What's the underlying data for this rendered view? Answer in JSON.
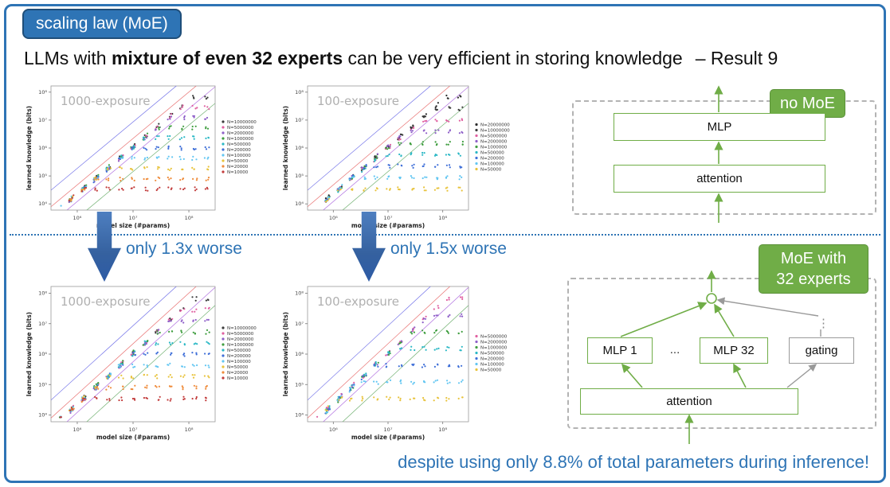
{
  "slide": {
    "badge_label": "scaling law (MoE)",
    "title": {
      "prefix": "LLMs with ",
      "bold": "mixture of even 32 experts",
      "suffix": " can be very efficient in storing knowledge",
      "result_tag": "– Result 9"
    },
    "bottom_note": "despite using only 8.8% of total parameters during inference!",
    "accent_blue": "#2E74B5",
    "accent_green": "#70AD47"
  },
  "comparison": {
    "arrow_labels": [
      "only 1.3x worse",
      "only 1.5x worse"
    ]
  },
  "no_moe_diagram": {
    "badge": "no MoE",
    "mlp": "MLP",
    "attention": "attention"
  },
  "moe_diagram": {
    "badge_line1": "MoE with",
    "badge_line2": "32 experts",
    "mlp1": "MLP 1",
    "ellipsis": "...",
    "mlp32": "MLP 32",
    "gating": "gating",
    "vertical_dots": "⋮",
    "attention": "attention"
  },
  "charts": [
    {
      "id": "chart-tl",
      "type": "scatter",
      "exposure": "1000-exposure",
      "xlabel": "model size (#params)",
      "ylabel": "learned knowledge (bits)",
      "x_ticks": [
        "10⁶",
        "10⁷",
        "10⁸"
      ],
      "y_ticks": [
        "10⁸",
        "10⁷",
        "10⁶",
        "10⁵",
        "10⁴"
      ],
      "guides": [
        "#7070e8",
        "#e87070",
        "#b070e0",
        "#70b070"
      ],
      "seed": 11,
      "series": [
        {
          "label": "N=10000000",
          "color": "#3b3b3b"
        },
        {
          "label": "N=5000000",
          "color": "#e05fa0"
        },
        {
          "label": "N=2000000",
          "color": "#8e5fc8"
        },
        {
          "label": "N=1000000",
          "color": "#3f9e3f"
        },
        {
          "label": "N=500000",
          "color": "#2ab8c5"
        },
        {
          "label": "N=200000",
          "color": "#3f6fd8"
        },
        {
          "label": "N=100000",
          "color": "#62c6f2"
        },
        {
          "label": "N=50000",
          "color": "#e8c33c"
        },
        {
          "label": "N=20000",
          "color": "#ef8b3a"
        },
        {
          "label": "N=10000",
          "color": "#c23b3b"
        }
      ]
    },
    {
      "id": "chart-tr",
      "type": "scatter",
      "exposure": "100-exposure",
      "xlabel": "model size (#params)",
      "ylabel": "learned knowledge (bits)",
      "x_ticks": [
        "10⁶",
        "10⁷",
        "10⁸"
      ],
      "y_ticks": [
        "10⁸",
        "10⁷",
        "10⁶",
        "10⁵",
        "10⁴"
      ],
      "guides": [
        "#7070e8",
        "#e87070",
        "#b070e0",
        "#70b070"
      ],
      "seed": 22,
      "series": [
        {
          "label": "N=20000000",
          "color": "#2b2b2b"
        },
        {
          "label": "N=10000000",
          "color": "#3b3b3b"
        },
        {
          "label": "N=5000000",
          "color": "#e05fa0"
        },
        {
          "label": "N=2000000",
          "color": "#8e5fc8"
        },
        {
          "label": "N=1000000",
          "color": "#3f9e3f"
        },
        {
          "label": "N=500000",
          "color": "#2ab8c5"
        },
        {
          "label": "N=200000",
          "color": "#3f6fd8"
        },
        {
          "label": "N=100000",
          "color": "#62c6f2"
        },
        {
          "label": "N=50000",
          "color": "#e8c33c"
        }
      ]
    },
    {
      "id": "chart-bl",
      "type": "scatter",
      "exposure": "1000-exposure",
      "xlabel": "model size (#params)",
      "ylabel": "learned knowledge (bits)",
      "x_ticks": [
        "10⁶",
        "10⁷",
        "10⁸"
      ],
      "y_ticks": [
        "10⁸",
        "10⁷",
        "10⁶",
        "10⁵",
        "10⁴"
      ],
      "guides": [
        "#7070e8",
        "#e87070",
        "#b070e0",
        "#70b070"
      ],
      "seed": 33,
      "series": [
        {
          "label": "N=10000000",
          "color": "#3b3b3b"
        },
        {
          "label": "N=5000000",
          "color": "#e05fa0"
        },
        {
          "label": "N=2000000",
          "color": "#8e5fc8"
        },
        {
          "label": "N=1000000",
          "color": "#3f9e3f"
        },
        {
          "label": "N=500000",
          "color": "#2ab8c5"
        },
        {
          "label": "N=200000",
          "color": "#3f6fd8"
        },
        {
          "label": "N=100000",
          "color": "#62c6f2"
        },
        {
          "label": "N=50000",
          "color": "#e8c33c"
        },
        {
          "label": "N=20000",
          "color": "#ef8b3a"
        },
        {
          "label": "N=10000",
          "color": "#c23b3b"
        }
      ]
    },
    {
      "id": "chart-br",
      "type": "scatter",
      "exposure": "100-exposure",
      "xlabel": "model size (#params)",
      "ylabel": "learned knowledge (bits)",
      "x_ticks": [
        "10⁶",
        "10⁷",
        "10⁸"
      ],
      "y_ticks": [
        "10⁸",
        "10⁷",
        "10⁶",
        "10⁵",
        "10⁴"
      ],
      "guides": [
        "#7070e8",
        "#e87070",
        "#b070e0",
        "#70b070"
      ],
      "seed": 44,
      "series": [
        {
          "label": "N=5000000",
          "color": "#e05fa0"
        },
        {
          "label": "N=2000000",
          "color": "#8e5fc8"
        },
        {
          "label": "N=1000000",
          "color": "#3f9e3f"
        },
        {
          "label": "N=500000",
          "color": "#2ab8c5"
        },
        {
          "label": "N=200000",
          "color": "#3f6fd8"
        },
        {
          "label": "N=100000",
          "color": "#62c6f2"
        },
        {
          "label": "N=50000",
          "color": "#e8c33c"
        }
      ]
    }
  ]
}
